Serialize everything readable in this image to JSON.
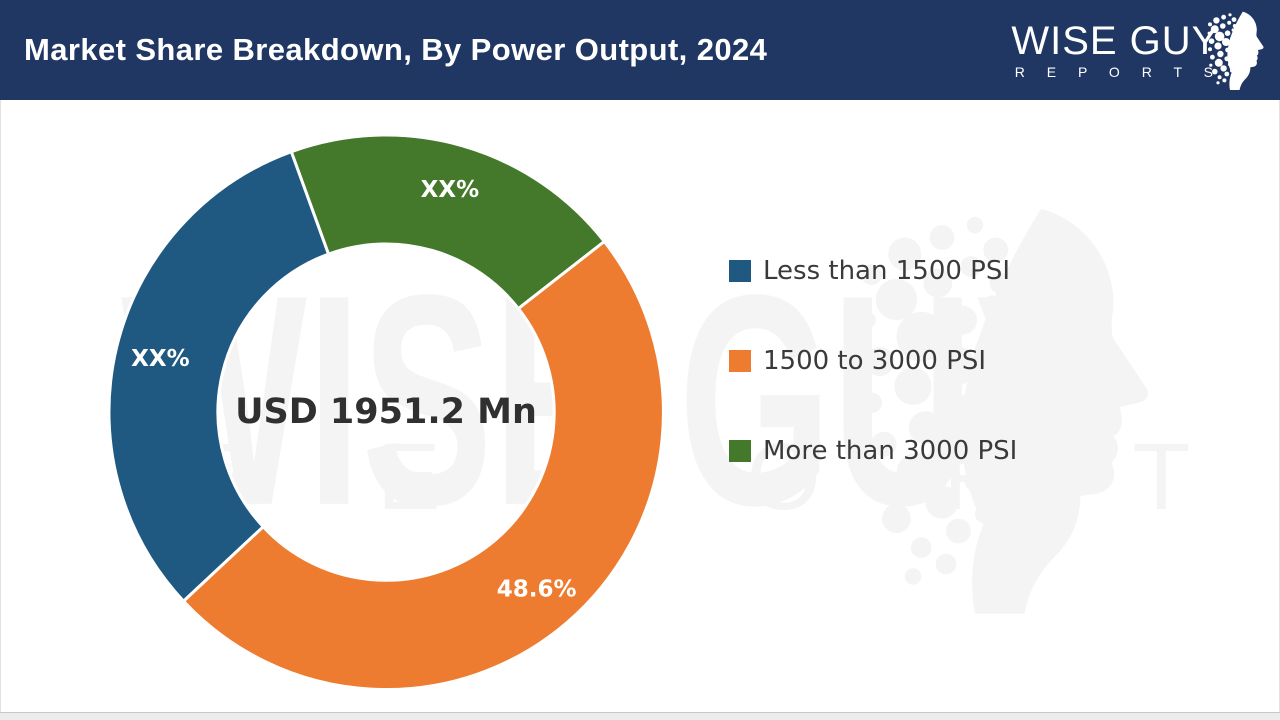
{
  "header": {
    "title": "Market Share Breakdown, By Power Output, 2024",
    "logo_line1": "WISE GUY",
    "logo_line2": "R E P O R T S"
  },
  "watermark": {
    "line1": "WISE GUY",
    "line2": "R E P O R T S"
  },
  "colors": {
    "header_bg": "#203763",
    "blue": "#1F5880",
    "orange": "#EE7C30",
    "green": "#44782A"
  },
  "chart_data": {
    "type": "pie",
    "subtype": "donut",
    "title": "Market Share Breakdown, By Power Output, 2024",
    "center_label": "USD 1951.2 Mn",
    "legend_position": "right",
    "start_angle_deg": 340,
    "draw_order": [
      2,
      1,
      0
    ],
    "slices": [
      {
        "name": "Less than 1500 PSI",
        "value": 31.4,
        "display_label": "XX%",
        "color": "#1F5880"
      },
      {
        "name": "1500 to 3000 PSI",
        "value": 48.6,
        "display_label": "48.6%",
        "color": "#EE7C30"
      },
      {
        "name": "More than 3000 PSI",
        "value": 20.0,
        "display_label": "XX%",
        "color": "#44782A"
      }
    ]
  }
}
